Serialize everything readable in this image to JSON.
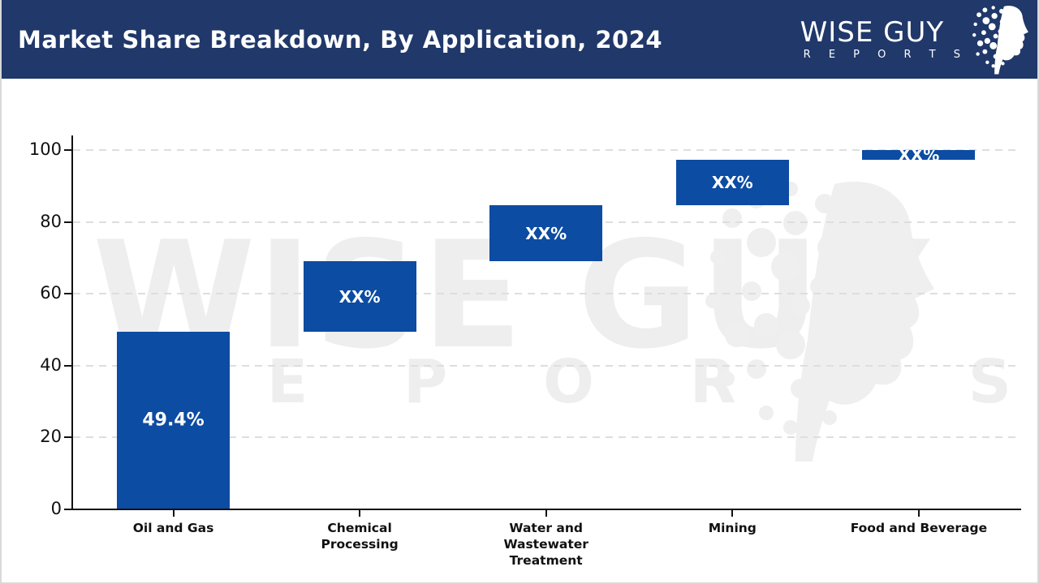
{
  "header": {
    "title": "Market Share Breakdown, By Application, 2024",
    "logo_line1": "WISE GUY",
    "logo_line2": "R E P O R T S",
    "bg_color": "#20386a"
  },
  "watermark": {
    "line1": "WISE GUY",
    "line2": "R E P O R T S"
  },
  "chart_data": {
    "type": "bar",
    "subtype": "waterfall-market-share",
    "title": "Market Share Breakdown, By Application, 2024",
    "xlabel": "",
    "ylabel": "",
    "ylim": [
      0,
      104
    ],
    "y_ticks": [
      0,
      20,
      40,
      60,
      80,
      100
    ],
    "grid": "horizontal-dashed",
    "bar_color": "#0c4ca2",
    "value_label_color": "#ffffff",
    "categories": [
      "Oil and Gas",
      "Chemical Processing",
      "Water and Wastewater Treatment",
      "Mining",
      "Food and Beverage"
    ],
    "segments": [
      {
        "category": "Oil and Gas",
        "label_lines": [
          "Oil and Gas"
        ],
        "start": 0,
        "end": 49.4,
        "value_label": "49.4%"
      },
      {
        "category": "Chemical Processing",
        "label_lines": [
          "Chemical",
          "Processing"
        ],
        "start": 49.4,
        "end": 69.0,
        "value_label": "XX%"
      },
      {
        "category": "Water and Wastewater Treatment",
        "label_lines": [
          "Water and",
          "Wastewater",
          "Treatment"
        ],
        "start": 69.0,
        "end": 84.6,
        "value_label": "XX%"
      },
      {
        "category": "Mining",
        "label_lines": [
          "Mining"
        ],
        "start": 84.6,
        "end": 97.2,
        "value_label": "XX%"
      },
      {
        "category": "Food and Beverage",
        "label_lines": [
          "Food and Beverage"
        ],
        "start": 97.2,
        "end": 100,
        "value_label": "XX%"
      }
    ]
  }
}
